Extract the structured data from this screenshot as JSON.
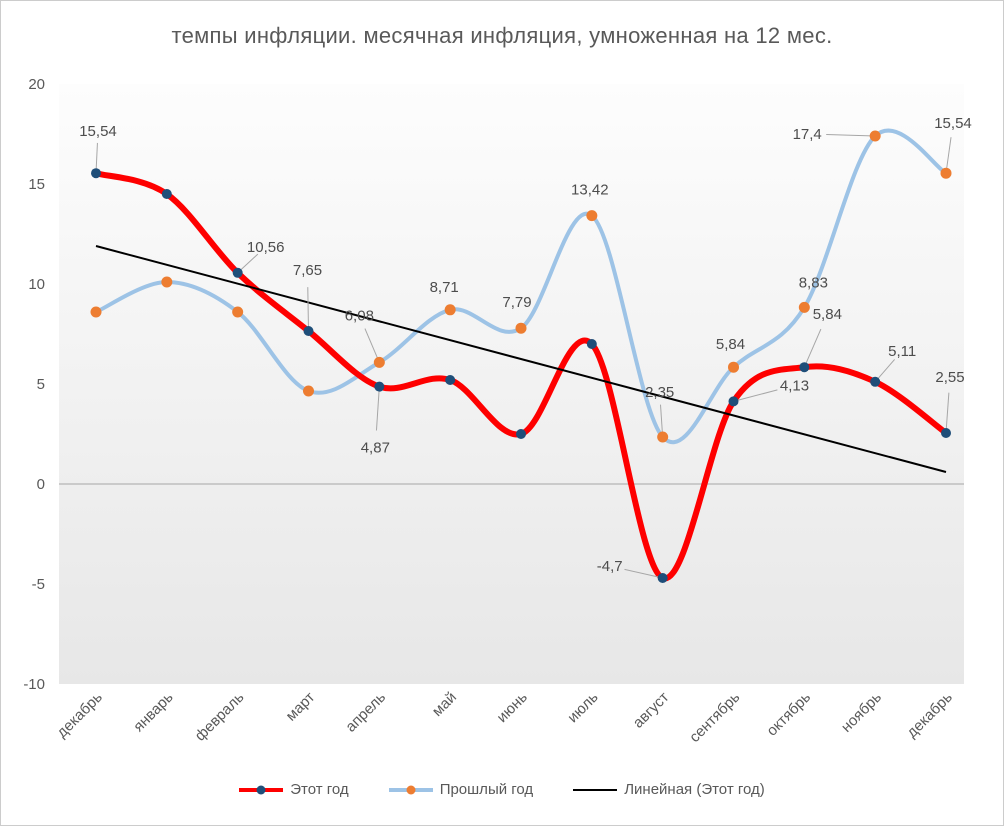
{
  "chart_data": {
    "type": "line",
    "title": "темпы инфляции. месячная инфляция, умноженная на 12 мес.",
    "categories": [
      "декабрь",
      "январь",
      "февраль",
      "март",
      "апрель",
      "май",
      "июнь",
      "июль",
      "август",
      "сентябрь",
      "октябрь",
      "ноябрь",
      "декабрь"
    ],
    "ylim": [
      -10,
      20
    ],
    "yticks": [
      "20",
      "15",
      "10",
      "5",
      "0",
      "-5",
      "-10"
    ],
    "grid": "zero-line-only",
    "legend_position": "bottom",
    "series": [
      {
        "name": "Этот год",
        "line_color": "#fe0000",
        "marker_color": "#1f4e79",
        "line_width": 6,
        "marker_radius": 5,
        "smooth": true,
        "values": [
          15.54,
          14.5,
          10.56,
          7.65,
          4.87,
          5.2,
          2.5,
          7.0,
          -4.7,
          4.13,
          5.84,
          5.11,
          2.55
        ],
        "labels": [
          {
            "i": 0,
            "text": "15,54",
            "dx": 2,
            "dy": -42,
            "leader": true
          },
          {
            "i": 2,
            "text": "10,56",
            "dx": 28,
            "dy": -26,
            "leader": true
          },
          {
            "i": 3,
            "text": "7,65",
            "dx": -1,
            "dy": -61,
            "leader": true
          },
          {
            "i": 4,
            "text": "4,87",
            "dx": -4,
            "dy": 61,
            "leader": true
          },
          {
            "i": 8,
            "text": "-4,7",
            "dx": -53,
            "dy": -12,
            "leader": true
          },
          {
            "i": 9,
            "text": "4,13",
            "dx": 61,
            "dy": -16,
            "leader": true
          },
          {
            "i": 10,
            "text": "5,84",
            "dx": 23,
            "dy": -53,
            "leader": true
          },
          {
            "i": 11,
            "text": "5,11",
            "dx": 27,
            "dy": -31,
            "leader": true
          },
          {
            "i": 12,
            "text": "2,55",
            "dx": 4,
            "dy": -56,
            "leader": true
          }
        ]
      },
      {
        "name": "Прошлый год",
        "line_color": "#9dc3e6",
        "marker_color": "#ed7d31",
        "line_width": 4,
        "marker_radius": 5.5,
        "smooth": true,
        "values": [
          8.6,
          10.1,
          8.6,
          4.65,
          6.08,
          8.71,
          7.79,
          13.42,
          2.35,
          5.84,
          8.83,
          17.4,
          15.54
        ],
        "labels": [
          {
            "i": 4,
            "text": "6,08",
            "dx": -20,
            "dy": -47,
            "leader": true
          },
          {
            "i": 5,
            "text": "8,71",
            "dx": -6,
            "dy": -23,
            "leader": false
          },
          {
            "i": 6,
            "text": "7,79",
            "dx": -4,
            "dy": -26,
            "leader": false
          },
          {
            "i": 7,
            "text": "13,42",
            "dx": -2,
            "dy": -26,
            "leader": false
          },
          {
            "i": 8,
            "text": "2,35",
            "dx": -3,
            "dy": -45,
            "leader": true
          },
          {
            "i": 9,
            "text": "5,84",
            "dx": -3,
            "dy": -23,
            "leader": false
          },
          {
            "i": 10,
            "text": "8,83",
            "dx": 9,
            "dy": -25,
            "leader": false
          },
          {
            "i": 11,
            "text": "17,4",
            "dx": -68,
            "dy": -2,
            "leader": true
          },
          {
            "i": 12,
            "text": "15,54",
            "dx": 7,
            "dy": -50,
            "leader": true
          }
        ]
      }
    ],
    "trendline": {
      "name": "Линейная (Этот год)",
      "color": "#000000",
      "width": 2,
      "start_value": 11.9,
      "end_value": 0.6
    },
    "style": {
      "title_color": "#595959",
      "axis_label_color": "#595959",
      "data_label_color": "#4d4d4d",
      "leader_line_color": "#a6a6a6",
      "zero_line_color": "#bdbdbd",
      "plot_bg_top": "#fdfdfd",
      "plot_bg_bottom": "#e7e7e7",
      "frame_border_color": "#cccccc"
    }
  }
}
